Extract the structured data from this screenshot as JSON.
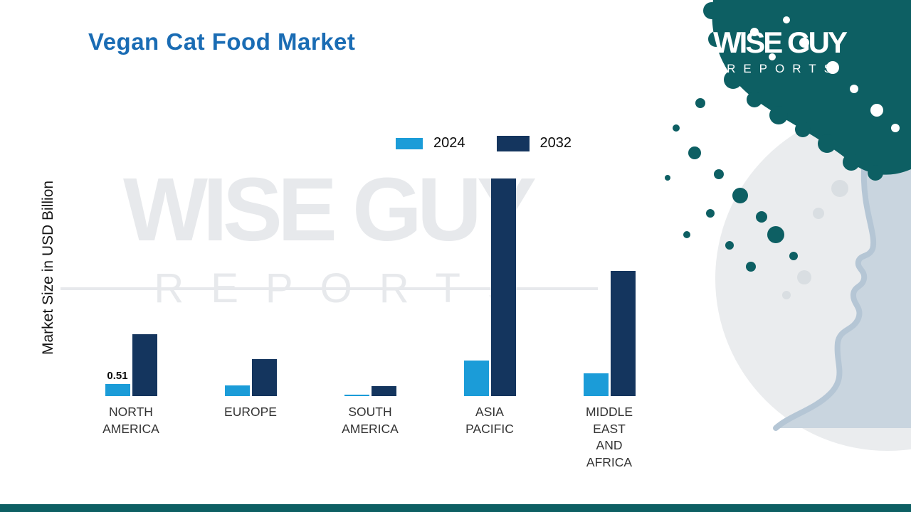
{
  "header": {
    "title": "Vegan Cat Food Market"
  },
  "brand": {
    "name": "WISE GUY",
    "reports": "REPORTS"
  },
  "watermark": {
    "line1": "WISE GUY",
    "line2": "REPORTS"
  },
  "colors": {
    "title_blue": "#1a6cb4",
    "bar_2024": "#1b9cd8",
    "bar_2032": "#14355e",
    "accent_teal": "#0d5f63",
    "watermark_gray": "#e7e9ec",
    "head_gray": "#eaecee",
    "face_blue": "#c9d5df"
  },
  "chart_data": {
    "type": "bar",
    "title": "Vegan Cat Food Market",
    "xlabel": "",
    "ylabel": "Market Size in USD Billion",
    "unit": "USD Billion",
    "categories": [
      "North America",
      "Europe",
      "South America",
      "Asia Pacific",
      "Middle East and Africa"
    ],
    "category_display": [
      "NORTH\nAMERICA",
      "EUROPE",
      "SOUTH\nAMERICA",
      "ASIA\nPACIFIC",
      "MIDDLE\nEAST\nAND\nAFRICA"
    ],
    "series": [
      {
        "name": "2024",
        "color": "#1b9cd8",
        "values": [
          0.51,
          0.45,
          0.05,
          1.5,
          0.95
        ]
      },
      {
        "name": "2032",
        "color": "#14355e",
        "values": [
          2.6,
          1.55,
          0.42,
          9.2,
          5.3
        ]
      }
    ],
    "data_labels": [
      "0.51",
      null,
      null,
      null,
      null
    ],
    "ylim": [
      0,
      10
    ],
    "grid": false,
    "legend_position": "top-center"
  }
}
